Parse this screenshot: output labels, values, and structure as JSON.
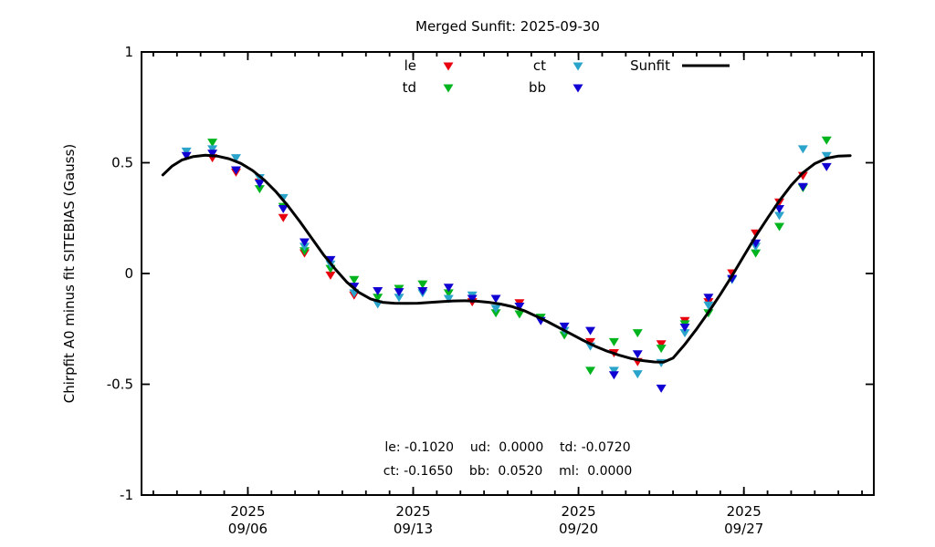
{
  "chart_data": {
    "type": "scatter",
    "title": "Merged Sunfit: 2025-09-30",
    "xlabel": "",
    "ylabel": "Chirpfit A0 minus fit SITEBIAS (Gauss)",
    "x_unit": "day of September 2025 (fractional)",
    "xlim": [
      1.5,
      32.5
    ],
    "ylim": [
      -1,
      1
    ],
    "grid": false,
    "y_ticks": [
      1,
      0.5,
      0,
      -0.5,
      -1
    ],
    "y_tick_labels": [
      "1",
      "0.5",
      "0",
      "-0.5",
      "-1"
    ],
    "x_major_ticks": [
      {
        "day": 6,
        "line1": "2025",
        "line2": "09/06"
      },
      {
        "day": 13,
        "line1": "2025",
        "line2": "09/13"
      },
      {
        "day": 20,
        "line1": "2025",
        "line2": "09/20"
      },
      {
        "day": 27,
        "line1": "2025",
        "line2": "09/27"
      }
    ],
    "x_minor_tick_days": [
      2,
      3,
      4,
      5,
      6,
      7,
      8,
      9,
      10,
      11,
      12,
      13,
      14,
      15,
      16,
      17,
      18,
      19,
      20,
      21,
      22,
      23,
      24,
      25,
      26,
      27,
      28,
      29,
      30,
      31,
      32
    ],
    "legend": {
      "position": "top-center-inside",
      "entries": [
        {
          "label": "le",
          "type": "marker",
          "series": "le"
        },
        {
          "label": "td",
          "type": "marker",
          "series": "td"
        },
        {
          "label": "ct",
          "type": "marker",
          "series": "ct"
        },
        {
          "label": "bb",
          "type": "marker",
          "series": "bb"
        },
        {
          "label": "Sunfit",
          "type": "line",
          "series": "fit"
        }
      ]
    },
    "series": [
      {
        "name": "le",
        "marker": "triangle-down",
        "color": "#e8000e",
        "points": [
          [
            4.5,
            0.52
          ],
          [
            5.5,
            0.455
          ],
          [
            6.5,
            0.41
          ],
          [
            7.5,
            0.25
          ],
          [
            8.4,
            0.09
          ],
          [
            9.5,
            -0.01
          ],
          [
            10.5,
            -0.1
          ],
          [
            15.5,
            -0.13
          ],
          [
            17.5,
            -0.135
          ],
          [
            20.5,
            -0.31
          ],
          [
            21.5,
            -0.36
          ],
          [
            22.5,
            -0.4
          ],
          [
            23.5,
            -0.32
          ],
          [
            24.5,
            -0.215
          ],
          [
            25.5,
            -0.13
          ],
          [
            26.5,
            0.0
          ],
          [
            27.5,
            0.18
          ],
          [
            28.5,
            0.32
          ],
          [
            29.5,
            0.44
          ]
        ]
      },
      {
        "name": "td",
        "marker": "triangle-down",
        "color": "#00b41e",
        "points": [
          [
            4.5,
            0.59
          ],
          [
            6.5,
            0.38
          ],
          [
            7.5,
            0.3
          ],
          [
            8.4,
            0.1
          ],
          [
            9.5,
            0.02
          ],
          [
            10.5,
            -0.03
          ],
          [
            11.5,
            -0.11
          ],
          [
            12.4,
            -0.07
          ],
          [
            13.4,
            -0.05
          ],
          [
            14.5,
            -0.09
          ],
          [
            16.5,
            -0.18
          ],
          [
            17.5,
            -0.185
          ],
          [
            18.4,
            -0.2
          ],
          [
            19.4,
            -0.28
          ],
          [
            20.5,
            -0.44
          ],
          [
            21.5,
            -0.31
          ],
          [
            22.5,
            -0.27
          ],
          [
            23.5,
            -0.34
          ],
          [
            24.5,
            -0.23
          ],
          [
            25.5,
            -0.18
          ],
          [
            27.5,
            0.09
          ],
          [
            28.5,
            0.21
          ],
          [
            29.5,
            0.385
          ],
          [
            30.5,
            0.6
          ]
        ]
      },
      {
        "name": "ct",
        "marker": "triangle-down",
        "color": "#2ba4cc",
        "points": [
          [
            3.4,
            0.55
          ],
          [
            4.5,
            0.56
          ],
          [
            5.5,
            0.52
          ],
          [
            6.5,
            0.43
          ],
          [
            7.5,
            0.34
          ],
          [
            8.4,
            0.12
          ],
          [
            9.5,
            0.04
          ],
          [
            10.5,
            -0.09
          ],
          [
            11.5,
            -0.14
          ],
          [
            12.4,
            -0.11
          ],
          [
            13.4,
            -0.09
          ],
          [
            14.5,
            -0.115
          ],
          [
            15.5,
            -0.1
          ],
          [
            16.5,
            -0.16
          ],
          [
            19.4,
            -0.26
          ],
          [
            20.5,
            -0.33
          ],
          [
            21.5,
            -0.44
          ],
          [
            22.5,
            -0.455
          ],
          [
            23.5,
            -0.405
          ],
          [
            24.5,
            -0.27
          ],
          [
            25.5,
            -0.145
          ],
          [
            26.5,
            -0.03
          ],
          [
            27.5,
            0.12
          ],
          [
            28.5,
            0.26
          ],
          [
            29.5,
            0.56
          ],
          [
            30.5,
            0.53
          ]
        ]
      },
      {
        "name": "bb",
        "marker": "triangle-down",
        "color": "#1100d2",
        "points": [
          [
            3.4,
            0.53
          ],
          [
            4.5,
            0.54
          ],
          [
            5.5,
            0.465
          ],
          [
            6.5,
            0.405
          ],
          [
            7.5,
            0.29
          ],
          [
            8.4,
            0.14
          ],
          [
            9.5,
            0.06
          ],
          [
            10.5,
            -0.06
          ],
          [
            11.5,
            -0.08
          ],
          [
            12.4,
            -0.085
          ],
          [
            13.4,
            -0.08
          ],
          [
            14.5,
            -0.065
          ],
          [
            15.5,
            -0.115
          ],
          [
            16.5,
            -0.115
          ],
          [
            17.5,
            -0.15
          ],
          [
            18.4,
            -0.215
          ],
          [
            19.4,
            -0.24
          ],
          [
            20.5,
            -0.26
          ],
          [
            21.5,
            -0.46
          ],
          [
            22.5,
            -0.365
          ],
          [
            23.5,
            -0.52
          ],
          [
            24.5,
            -0.245
          ],
          [
            25.5,
            -0.11
          ],
          [
            26.5,
            -0.025
          ],
          [
            27.5,
            0.135
          ],
          [
            28.5,
            0.29
          ],
          [
            29.5,
            0.39
          ],
          [
            30.5,
            0.48
          ]
        ]
      }
    ],
    "fit_line": {
      "name": "Sunfit",
      "color": "#000000",
      "points": [
        [
          2.4,
          0.445
        ],
        [
          2.8,
          0.485
        ],
        [
          3.2,
          0.512
        ],
        [
          3.7,
          0.528
        ],
        [
          4.2,
          0.534
        ],
        [
          4.7,
          0.53
        ],
        [
          5.2,
          0.518
        ],
        [
          5.7,
          0.497
        ],
        [
          6.2,
          0.465
        ],
        [
          6.7,
          0.422
        ],
        [
          7.2,
          0.368
        ],
        [
          7.7,
          0.305
        ],
        [
          8.2,
          0.235
        ],
        [
          8.7,
          0.16
        ],
        [
          9.2,
          0.085
        ],
        [
          9.7,
          0.02
        ],
        [
          10.2,
          -0.04
        ],
        [
          10.7,
          -0.085
        ],
        [
          11.2,
          -0.115
        ],
        [
          11.7,
          -0.13
        ],
        [
          12.2,
          -0.134
        ],
        [
          12.7,
          -0.135
        ],
        [
          13.2,
          -0.134
        ],
        [
          13.7,
          -0.131
        ],
        [
          14.2,
          -0.127
        ],
        [
          14.7,
          -0.124
        ],
        [
          15.2,
          -0.123
        ],
        [
          15.7,
          -0.125
        ],
        [
          16.2,
          -0.13
        ],
        [
          16.7,
          -0.138
        ],
        [
          17.2,
          -0.15
        ],
        [
          17.7,
          -0.168
        ],
        [
          18.2,
          -0.192
        ],
        [
          18.7,
          -0.218
        ],
        [
          19.2,
          -0.246
        ],
        [
          19.7,
          -0.274
        ],
        [
          20.2,
          -0.302
        ],
        [
          20.7,
          -0.328
        ],
        [
          21.2,
          -0.35
        ],
        [
          21.7,
          -0.368
        ],
        [
          22.2,
          -0.383
        ],
        [
          22.7,
          -0.393
        ],
        [
          23.2,
          -0.399
        ],
        [
          23.6,
          -0.4
        ],
        [
          24.0,
          -0.382
        ],
        [
          24.5,
          -0.32
        ],
        [
          25.0,
          -0.25
        ],
        [
          25.5,
          -0.175
        ],
        [
          26.0,
          -0.095
        ],
        [
          26.5,
          -0.01
        ],
        [
          27.0,
          0.08
        ],
        [
          27.5,
          0.168
        ],
        [
          28.0,
          0.25
        ],
        [
          28.5,
          0.328
        ],
        [
          29.0,
          0.398
        ],
        [
          29.5,
          0.455
        ],
        [
          30.0,
          0.496
        ],
        [
          30.5,
          0.52
        ],
        [
          31.0,
          0.53
        ],
        [
          31.5,
          0.532
        ]
      ]
    },
    "annotations": [
      "le: -0.1020    ud:  0.0000    td: -0.0720",
      "ct: -0.1650    bb:  0.0520    ml:  0.0000"
    ]
  }
}
